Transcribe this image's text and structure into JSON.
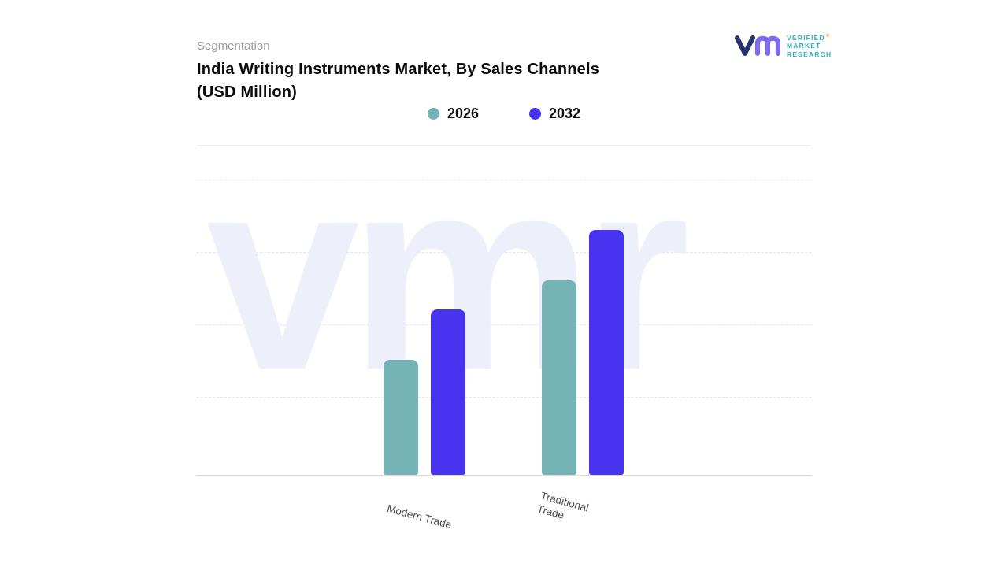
{
  "header": {
    "eyebrow": "Segmentation",
    "title_line1": "India Writing Instruments Market, By Sales Channels",
    "title_line2": "(USD Million)"
  },
  "logo": {
    "lines": [
      "VERIFIED",
      "MARKET",
      "RESEARCH"
    ],
    "registered": "®"
  },
  "legend": [
    {
      "label": "2026",
      "color": "#74b3b6"
    },
    {
      "label": "2032",
      "color": "#4733f0"
    }
  ],
  "watermark": "vmr",
  "chart_data": {
    "type": "bar",
    "title": "India Writing Instruments Market, By Sales Channels (USD Million)",
    "categories": [
      "Modern Trade",
      "Traditional Trade"
    ],
    "series": [
      {
        "name": "2026",
        "color": "#74b3b6",
        "values": [
          39,
          66
        ]
      },
      {
        "name": "2032",
        "color": "#4733f0",
        "values": [
          56,
          83
        ]
      }
    ],
    "xlabel": "",
    "ylabel": "",
    "ylim": [
      0,
      100
    ],
    "y_axis_labels_visible": false,
    "grid": "horizontal-dashed",
    "legend_position": "top-center",
    "note": "No numeric axis values are shown in the figure; bar values estimated as percent of plot height relative to top gridline"
  }
}
